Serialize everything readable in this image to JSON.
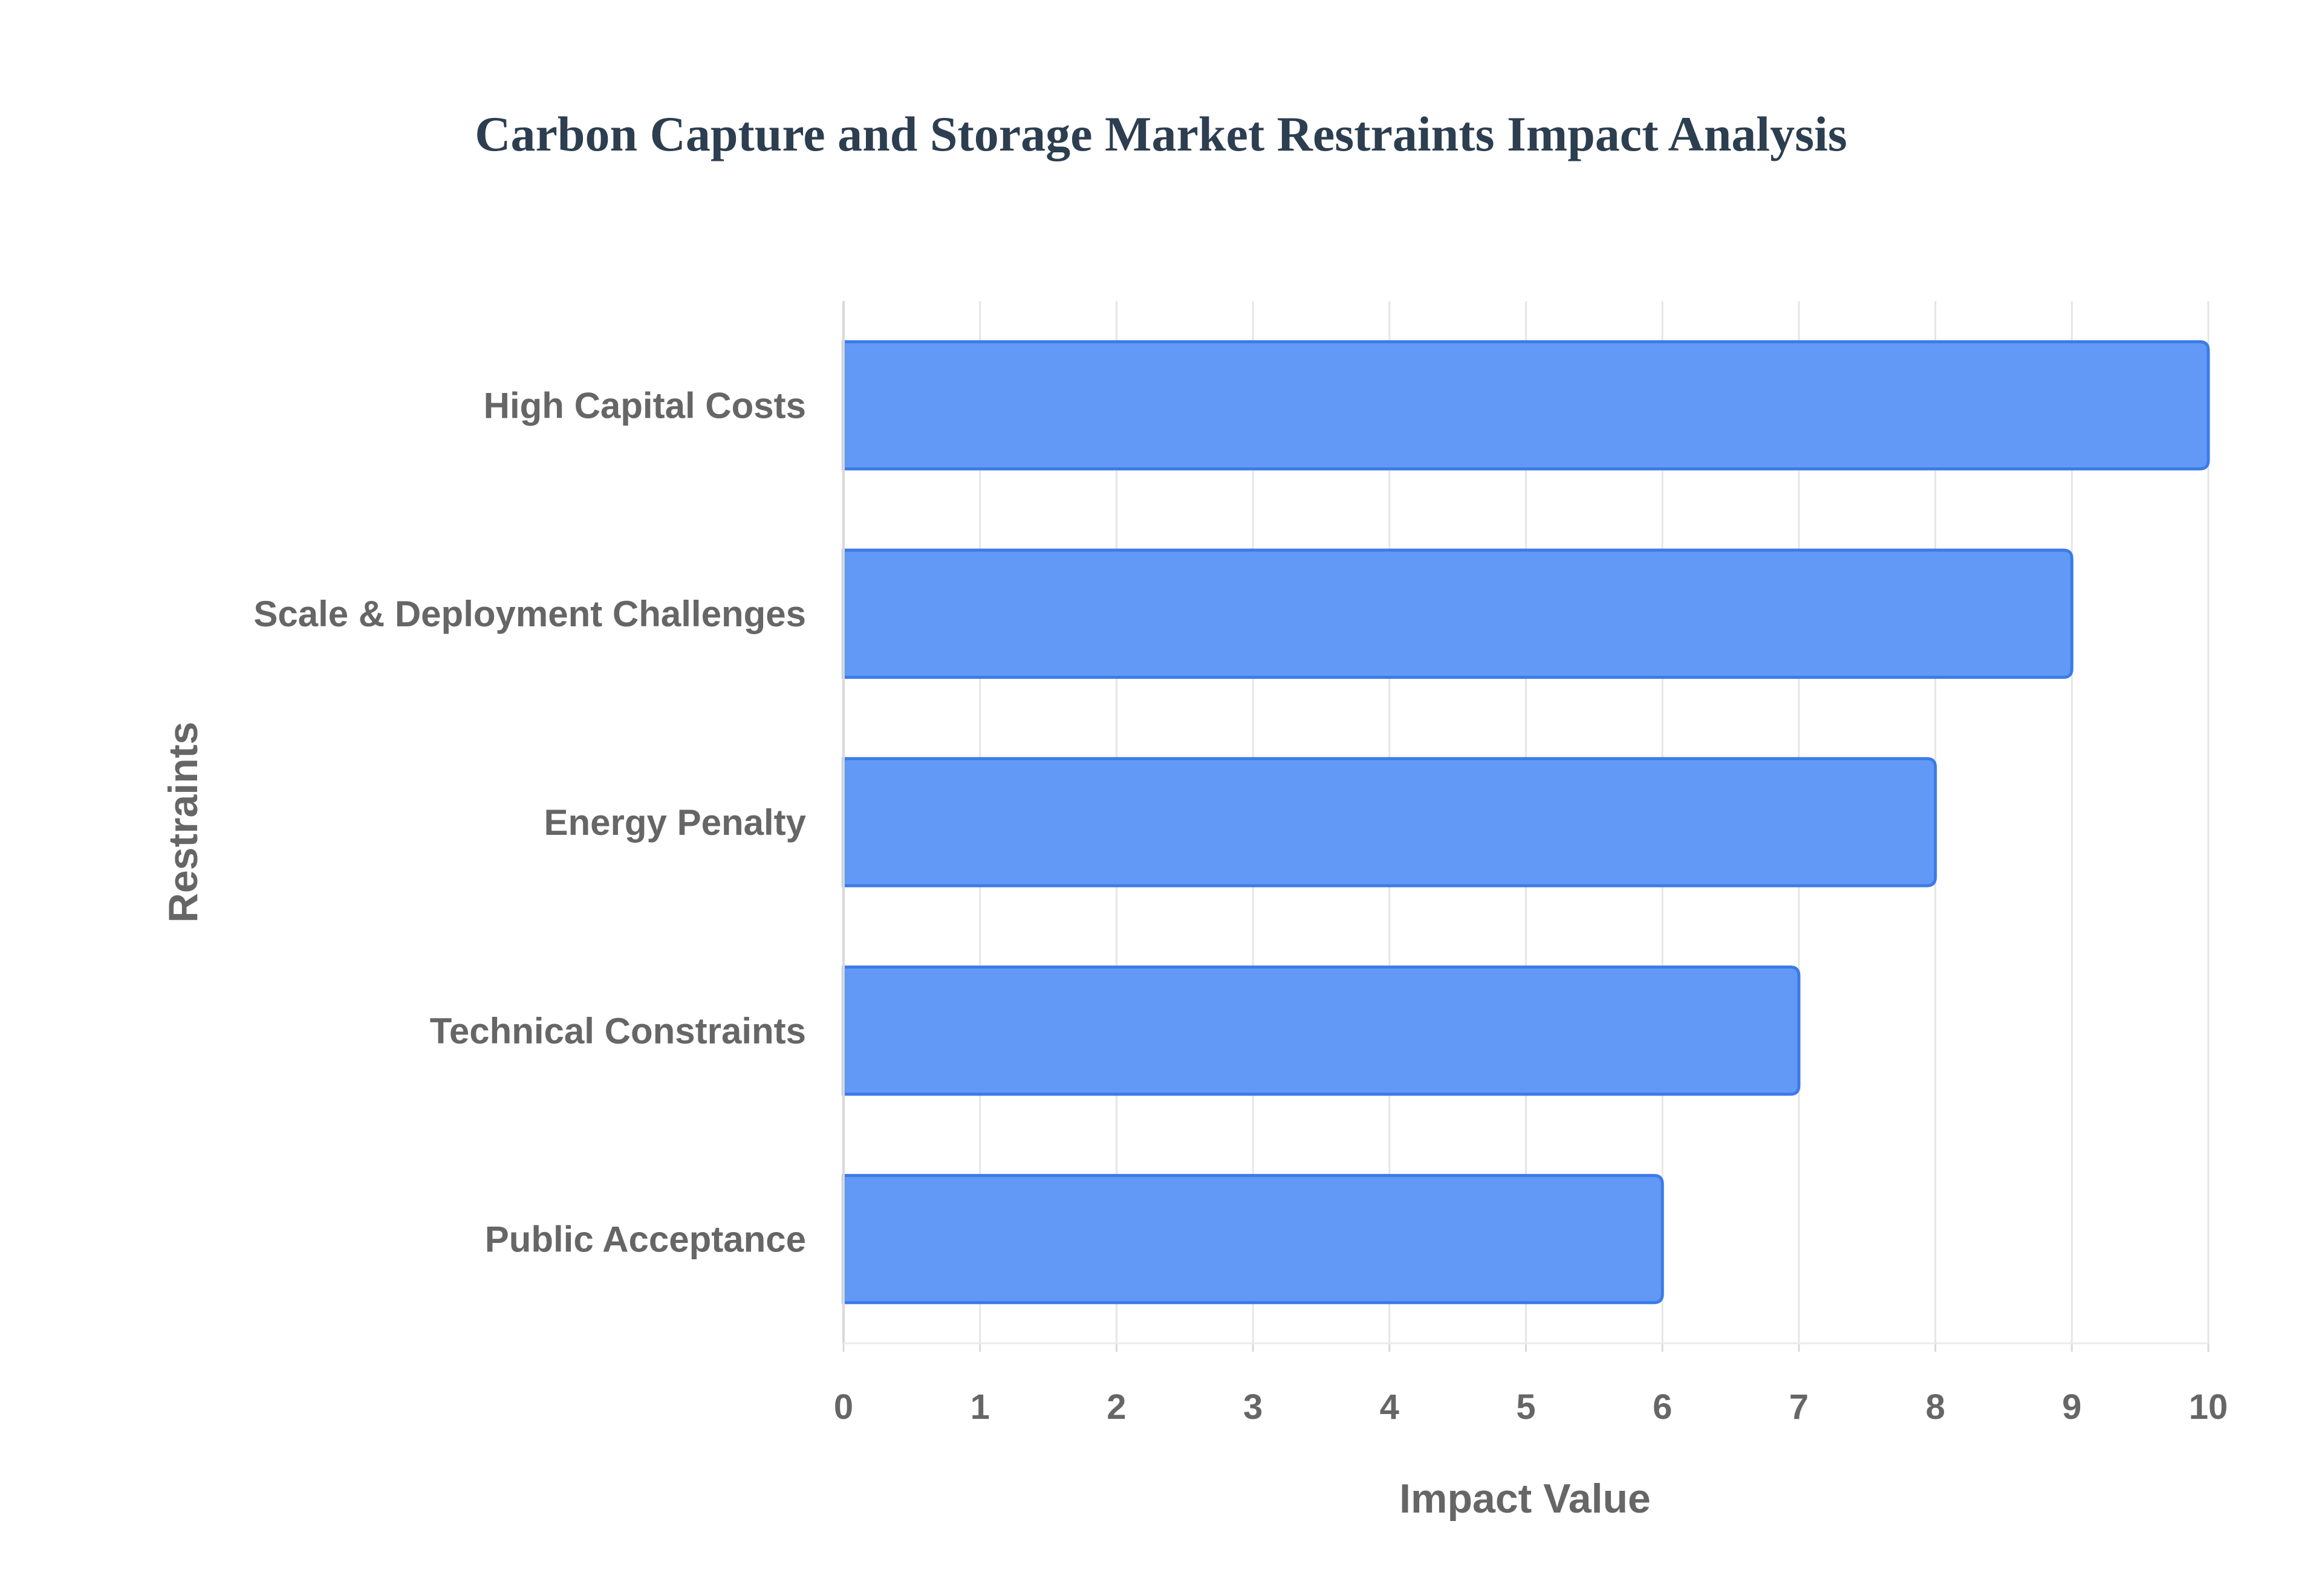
{
  "chart_data": {
    "type": "bar",
    "orientation": "horizontal",
    "title": "Carbon Capture and Storage Market Restraints Impact Analysis",
    "xlabel": "Impact Value",
    "ylabel": "Restraints",
    "categories": [
      "High Capital Costs",
      "Scale & Deployment Challenges",
      "Energy Penalty",
      "Technical Constraints",
      "Public Acceptance"
    ],
    "values": [
      10,
      9,
      8,
      7,
      6
    ],
    "xlim": [
      0,
      10
    ],
    "xticks": [
      "0",
      "1",
      "2",
      "3",
      "4",
      "5",
      "6",
      "7",
      "8",
      "9",
      "10"
    ],
    "grid": true,
    "legend": "none",
    "bar_color": "#6399f6",
    "bar_edge_color": "#3b7be8",
    "text_color": "#666666",
    "title_color": "#2c3e50"
  }
}
